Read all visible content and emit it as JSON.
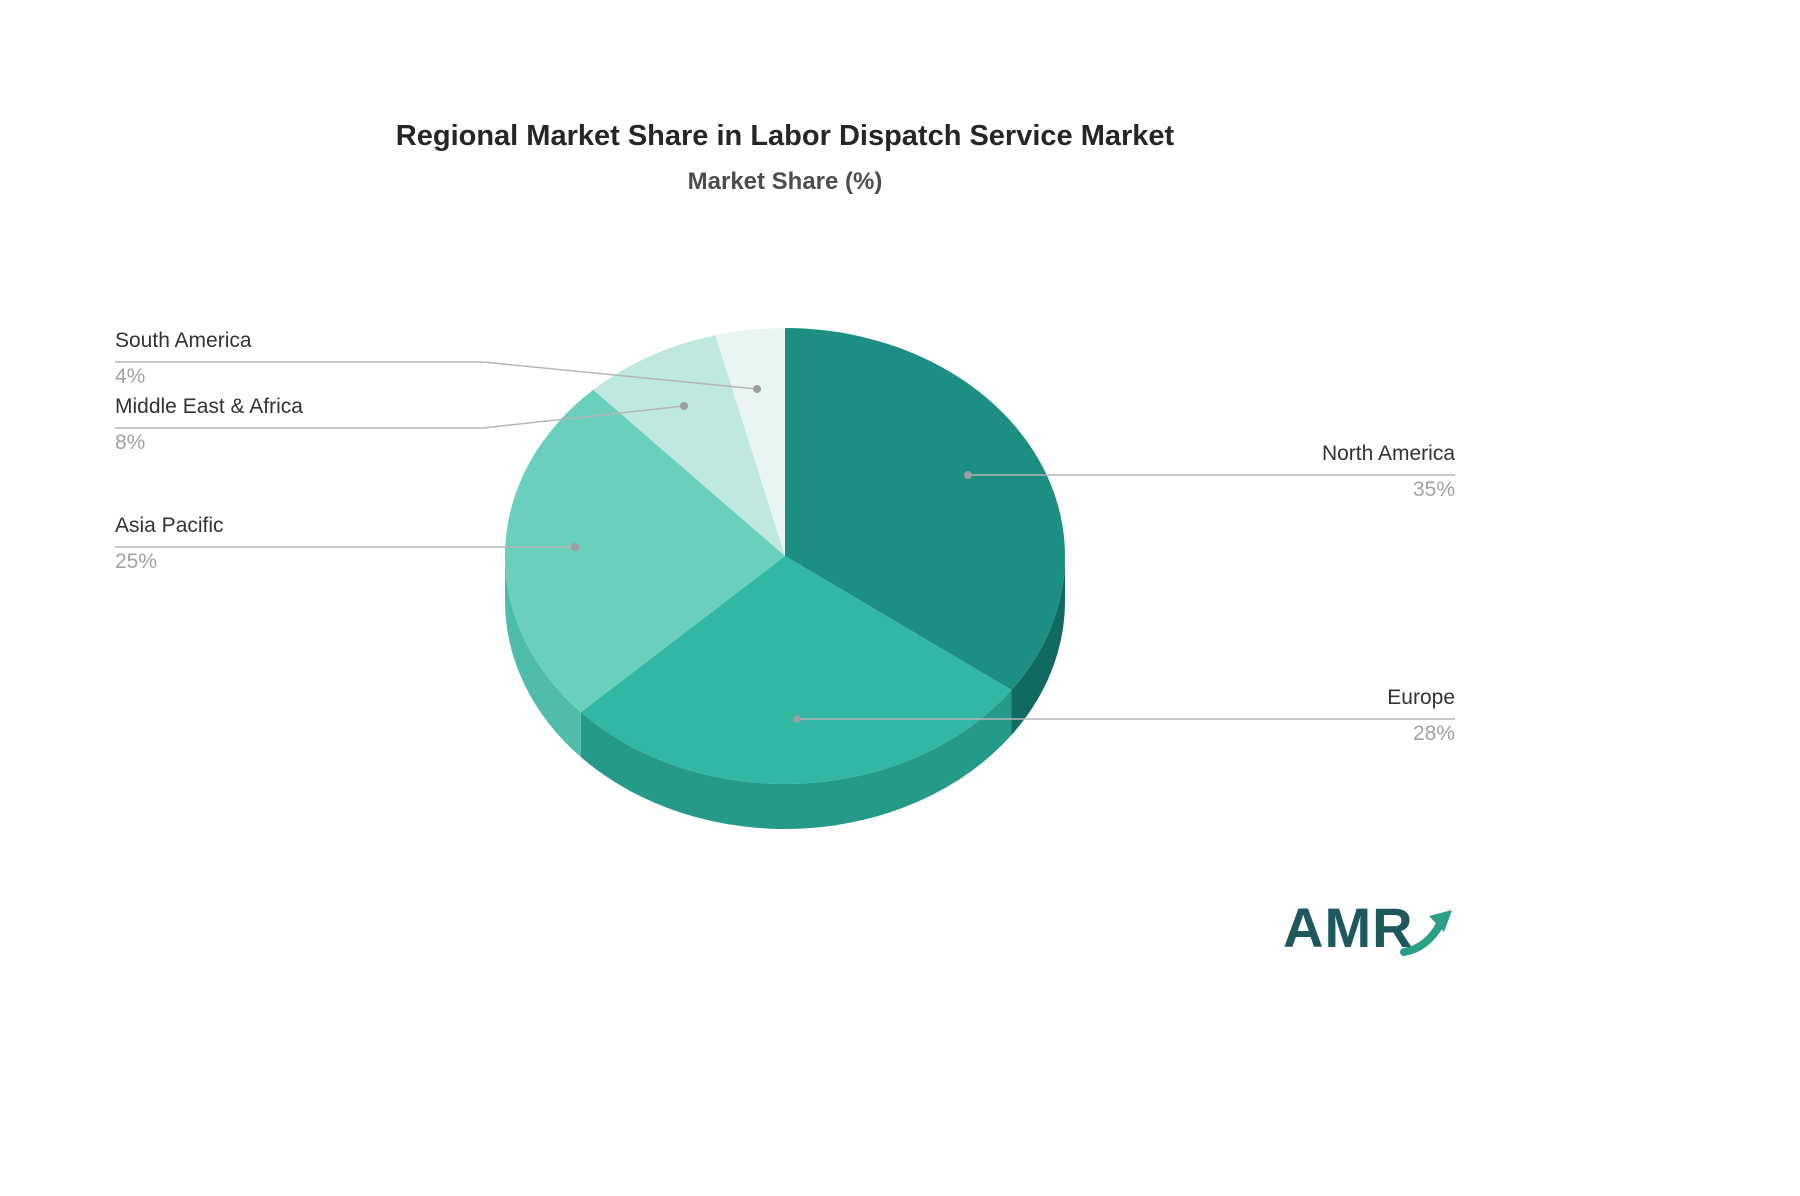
{
  "header": {
    "title": "Regional Market Share in Labor Dispatch Service Market",
    "subtitle": "Market Share (%)"
  },
  "chart_data": {
    "type": "pie",
    "style": "3d-pie",
    "title": "Regional Market Share in Labor Dispatch Service Market",
    "subtitle": "Market Share (%)",
    "unit": "%",
    "categories": [
      "North America",
      "Europe",
      "Asia Pacific",
      "Middle East & Africa",
      "South America"
    ],
    "values": [
      35,
      28,
      25,
      8,
      4
    ],
    "labels": [
      "35%",
      "28%",
      "25%",
      "8%",
      "4%"
    ],
    "colors": [
      "#1d8f82",
      "#31b7a2",
      "#6bcfbd",
      "#bfe8df",
      "#e9f5f2"
    ],
    "side_colors": [
      "#116a60",
      "#259a88",
      "#50bdaa",
      "#a6ded2",
      "#d8efe9"
    ],
    "start_angle_deg": 0,
    "direction": "clockwise",
    "legend_position": "callout-labels",
    "leader_line_color": "#b5b5b5",
    "leader_dot_color": "#9e9e9e",
    "background": "#ffffff"
  },
  "logo": {
    "text": "AMR",
    "text_color": "#1d585c",
    "arrow_color": "#2ba089"
  }
}
